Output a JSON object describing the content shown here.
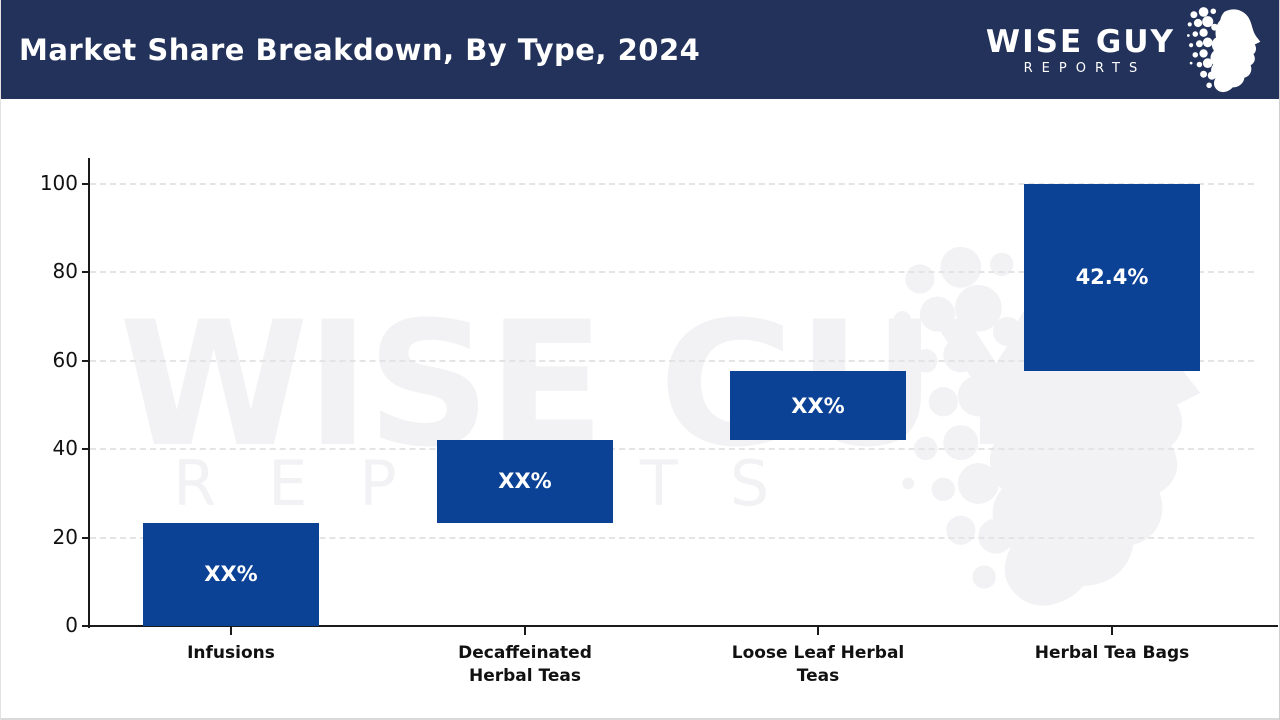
{
  "header": {
    "title": "Market Share Breakdown, By Type, 2024",
    "logo": {
      "line1": "WISE GUY",
      "line2": "REPORTS"
    }
  },
  "watermark": {
    "line1": "WISE GUY",
    "line2": "REPORTS"
  },
  "colors": {
    "header_bg": "#22325a",
    "bar_color": "#0b4296",
    "watermark_color": "#f2f2f4"
  },
  "chart_data": {
    "type": "bar",
    "subtype": "waterfall",
    "title": "Market Share Breakdown, By Type, 2024",
    "xlabel": "",
    "ylabel": "",
    "categories": [
      "Infusions",
      "Decaffeinated Herbal Teas",
      "Loose Leaf Herbal Teas",
      "Herbal Tea Bags"
    ],
    "x_tick_labels": [
      "Infusions",
      "Decaffeinated\nHerbal Teas",
      "Loose Leaf Herbal\nTeas",
      "Herbal Tea Bags"
    ],
    "bars": [
      {
        "category": "Infusions",
        "start": 0,
        "end": 23.4,
        "value_label": "XX%"
      },
      {
        "category": "Decaffeinated Herbal Teas",
        "start": 23.4,
        "end": 42.0,
        "value_label": "XX%"
      },
      {
        "category": "Loose Leaf Herbal Teas",
        "start": 42.0,
        "end": 57.7,
        "value_label": "XX%"
      },
      {
        "category": "Herbal Tea Bags",
        "start": 57.7,
        "end": 100.1,
        "value_label": "42.4%"
      }
    ],
    "y_ticks": [
      0,
      20,
      40,
      60,
      80,
      100
    ],
    "ylim": [
      0,
      106
    ],
    "grid": "horizontal-dashed",
    "legend": "none",
    "bar_color": "#0b4296"
  }
}
